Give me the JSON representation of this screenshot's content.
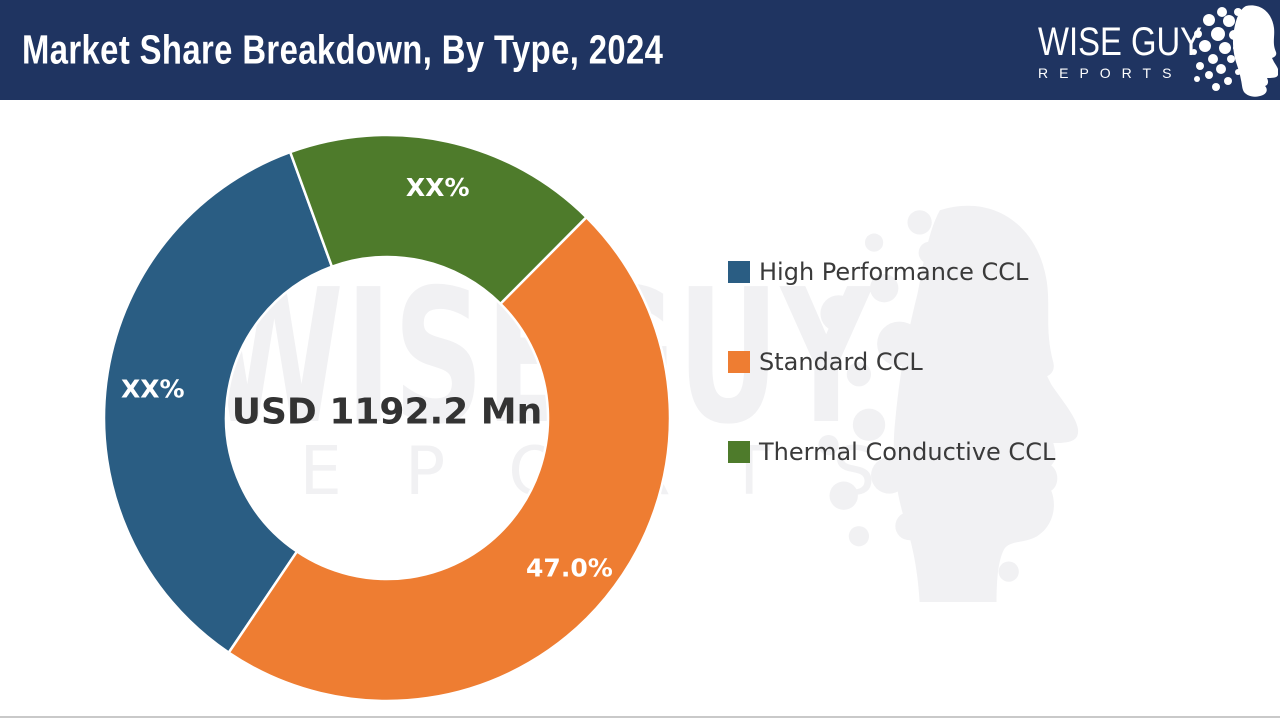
{
  "header": {
    "title": "Market Share Breakdown, By Type, 2024",
    "bg_color": "#1f3461",
    "logo": {
      "name": "WISE GUY",
      "subname": "REPORTS"
    }
  },
  "watermark": {
    "line1": "WISEGUY",
    "line2": "REPORTS"
  },
  "chart_data": {
    "type": "pie",
    "subtype": "donut",
    "title": "Market Share Breakdown, By Type, 2024",
    "center_label": "USD 1192.2 Mn",
    "start_angle_deg": 110,
    "direction": "counterclockwise",
    "inner_radius_ratio": 0.57,
    "legend_position": "right",
    "segments": [
      {
        "label": "High Performance CCL",
        "displayed_label": "XX%",
        "value_pct": 35.0,
        "pct_is_estimated_from_arc": true,
        "color": "#2a5d83"
      },
      {
        "label": "Standard CCL",
        "displayed_label": "47.0%",
        "value_pct": 47.0,
        "pct_is_estimated_from_arc": false,
        "color": "#ee7d32"
      },
      {
        "label": "Thermal Conductive CCL",
        "displayed_label": "XX%",
        "value_pct": 18.0,
        "pct_is_estimated_from_arc": true,
        "color": "#4e7b2b"
      }
    ]
  },
  "legend": {
    "items": [
      {
        "label": "High Performance CCL"
      },
      {
        "label": "Standard CCL"
      },
      {
        "label": "Thermal Conductive CCL"
      }
    ]
  }
}
